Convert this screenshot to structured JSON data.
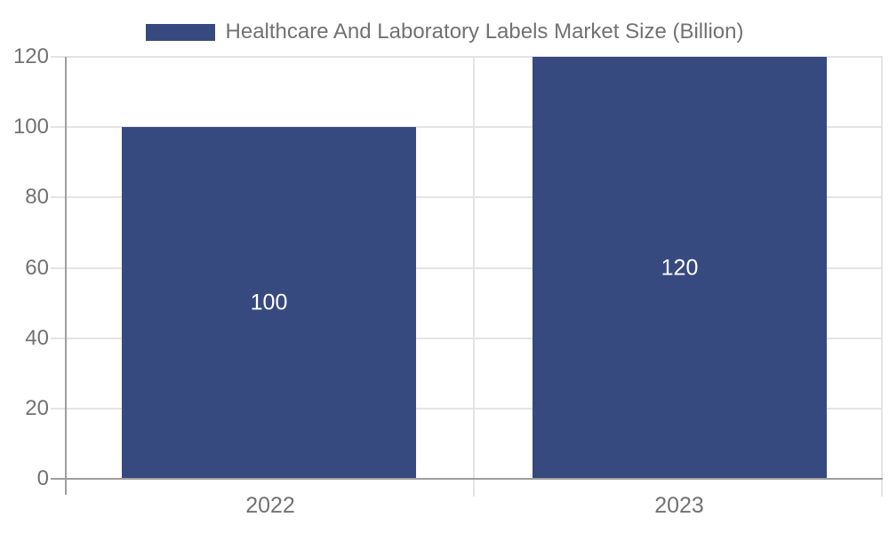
{
  "chart_data": {
    "type": "bar",
    "title": "Healthcare And Laboratory Labels Market Size (Billion)",
    "legend": {
      "position": "top",
      "label": "Healthcare And Laboratory Labels Market Size (Billion)"
    },
    "categories": [
      "2022",
      "2023"
    ],
    "series": [
      {
        "name": "Healthcare And Laboratory Labels Market Size (Billion)",
        "values": [
          100,
          120
        ]
      }
    ],
    "data_labels": [
      "100",
      "120"
    ],
    "xlabel": "",
    "ylabel": "",
    "ylim": [
      0,
      120
    ],
    "yticks": [
      0,
      20,
      40,
      60,
      80,
      100,
      120
    ],
    "grid": true,
    "colors": {
      "bar": "#374a7f",
      "grid_light": "#e4e4e4",
      "axis": "#9e9e9e",
      "text": "#727272",
      "bar_label_text": "#ffffff",
      "background": "#ffffff"
    }
  }
}
